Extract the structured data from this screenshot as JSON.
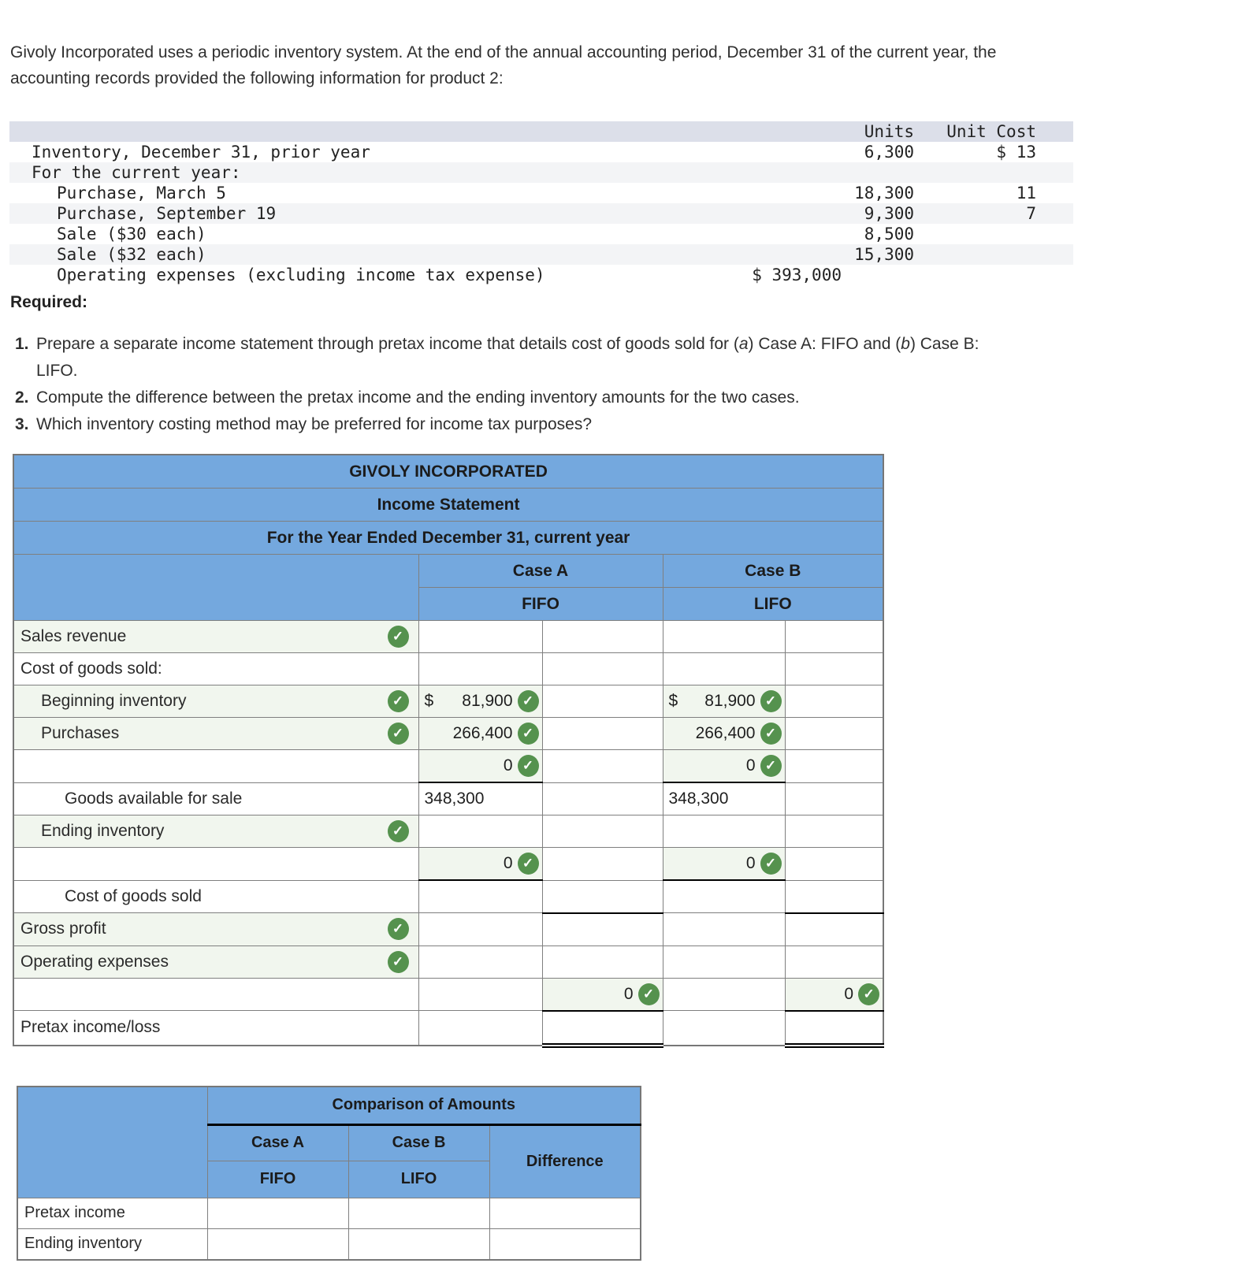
{
  "intro": {
    "line1": "Givoly Incorporated uses a periodic inventory system. At the end of the annual accounting period, December 31 of the current year, the",
    "line2": "accounting records provided the following information for product 2:"
  },
  "inventory_table": {
    "headers": {
      "units": "Units",
      "unit_cost": "Unit Cost"
    },
    "rows": [
      {
        "label": "Inventory, December 31, prior year",
        "indent": 0,
        "amount": "",
        "units": "6,300",
        "unit_cost": "$ 13",
        "stripe": false
      },
      {
        "label": "For the current year:",
        "indent": 0,
        "amount": "",
        "units": "",
        "unit_cost": "",
        "stripe": true
      },
      {
        "label": "Purchase, March 5",
        "indent": 1,
        "amount": "",
        "units": "18,300",
        "unit_cost": "11",
        "stripe": false
      },
      {
        "label": "Purchase, September 19",
        "indent": 1,
        "amount": "",
        "units": "9,300",
        "unit_cost": "7",
        "stripe": true
      },
      {
        "label": "Sale ($30 each)",
        "indent": 1,
        "amount": "",
        "units": "8,500",
        "unit_cost": "",
        "stripe": false
      },
      {
        "label": "Sale ($32 each)",
        "indent": 1,
        "amount": "",
        "units": "15,300",
        "unit_cost": "",
        "stripe": true
      },
      {
        "label": "Operating expenses (excluding income tax expense)",
        "indent": 1,
        "amount": "$ 393,000",
        "units": "",
        "unit_cost": "",
        "stripe": false
      }
    ]
  },
  "required": {
    "heading": "Required:",
    "item1": {
      "num": "1.",
      "seg1": "Prepare a separate income statement through pretax income that details cost of goods sold for (",
      "a": "a",
      "seg2": ") Case A: FIFO and (",
      "b": "b",
      "seg3": ") Case B:",
      "line2": "LIFO."
    },
    "item2": {
      "num": "2.",
      "text": "Compute the difference between the pretax income and the ending inventory amounts for the two cases."
    },
    "item3": {
      "num": "3.",
      "text": "Which inventory costing method may be preferred for income tax purposes?"
    }
  },
  "income_statement": {
    "titles": [
      "GIVOLY INCORPORATED",
      "Income Statement",
      "For the Year Ended December 31, current year"
    ],
    "col_headers": {
      "case_a": "Case A",
      "case_b": "Case B",
      "fifo": "FIFO",
      "lifo": "LIFO"
    },
    "rows": [
      {
        "label": "Sales revenue",
        "indent": 0,
        "label_check": true
      },
      {
        "label": "Cost of goods sold:",
        "indent": 0
      },
      {
        "label": "Beginning inventory",
        "indent": 1,
        "label_check": true,
        "a1": {
          "dollar": "$",
          "text": "81,900",
          "check": true,
          "tint": true
        },
        "b1": {
          "dollar": "$",
          "text": "81,900",
          "check": true,
          "tint": true
        }
      },
      {
        "label": "Purchases",
        "indent": 1,
        "label_check": true,
        "a1": {
          "text": "266,400",
          "check": true,
          "tint": true
        },
        "b1": {
          "text": "266,400",
          "check": true,
          "tint": true
        }
      },
      {
        "label": "",
        "a1": {
          "text": "0",
          "check": true,
          "tint": true,
          "rule": "single"
        },
        "b1": {
          "text": "0",
          "check": true,
          "tint": true,
          "rule": "single"
        }
      },
      {
        "label": "Goods available for sale",
        "indent": 2,
        "a1": {
          "text": "348,300",
          "align": "left"
        },
        "b1": {
          "text": "348,300",
          "align": "left"
        }
      },
      {
        "label": "Ending inventory",
        "indent": 1,
        "label_check": true
      },
      {
        "label": "",
        "a1": {
          "text": "0",
          "check": true,
          "tint": true,
          "rule": "single"
        },
        "b1": {
          "text": "0",
          "check": true,
          "tint": true,
          "rule": "single"
        }
      },
      {
        "label": "Cost of goods sold",
        "indent": 2,
        "a2": {
          "rule": "single"
        },
        "b2": {
          "rule": "single"
        }
      },
      {
        "label": "Gross profit",
        "indent": 0,
        "label_check": true
      },
      {
        "label": "Operating expenses",
        "indent": 0,
        "label_check": true
      },
      {
        "label": "",
        "a2": {
          "text": "0",
          "check": true,
          "tint": true,
          "rule": "single"
        },
        "b2": {
          "text": "0",
          "check": true,
          "tint": true,
          "rule": "single"
        }
      },
      {
        "label": "Pretax income/loss",
        "indent": 0,
        "a2": {
          "rule": "double"
        },
        "b2": {
          "rule": "double"
        }
      }
    ]
  },
  "comparison": {
    "title": "Comparison of Amounts",
    "case_a": "Case A",
    "case_b": "Case B",
    "fifo": "FIFO",
    "lifo": "LIFO",
    "difference": "Difference",
    "rows": [
      {
        "label": "Pretax income"
      },
      {
        "label": "Ending inventory"
      }
    ]
  },
  "icons": {
    "check": "✓"
  },
  "colors": {
    "header_blue": "#74a8de",
    "check_green": "#55924e",
    "tint_green": "#f1f6ee",
    "band_blue_gray": "#dcdfe9",
    "stripe_gray": "#f3f4f6"
  }
}
